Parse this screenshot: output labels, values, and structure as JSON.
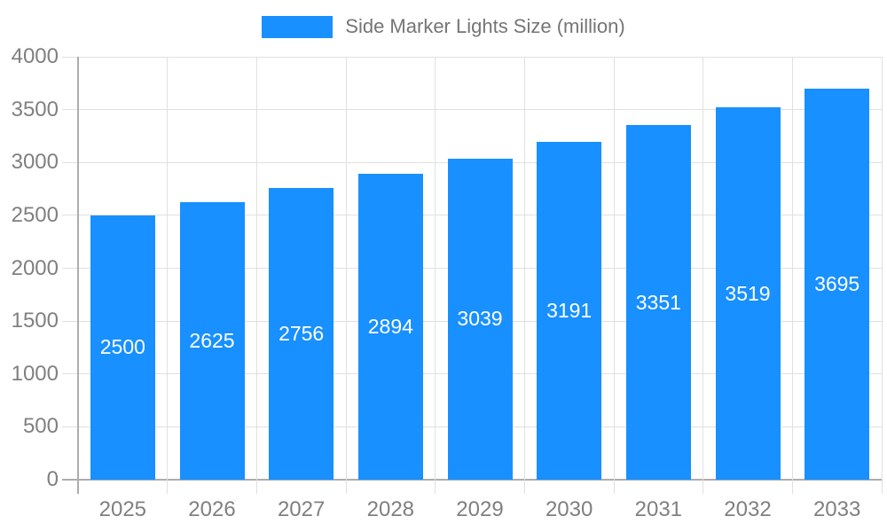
{
  "chart_data": {
    "type": "bar",
    "title": "Side Marker Lights Size (million)",
    "legend_position": "top",
    "categories": [
      "2025",
      "2026",
      "2027",
      "2028",
      "2029",
      "2030",
      "2031",
      "2032",
      "2033"
    ],
    "series": [
      {
        "name": "Side Marker Lights Size (million)",
        "values": [
          2500,
          2625,
          2756,
          2894,
          3039,
          3191,
          3351,
          3519,
          3695
        ]
      }
    ],
    "xlabel": "",
    "ylabel": "",
    "ylim": [
      0,
      4000
    ],
    "y_ticks": [
      0,
      500,
      1000,
      1500,
      2000,
      2500,
      3000,
      3500,
      4000
    ],
    "grid": true,
    "value_labels": "inside-center",
    "colors": {
      "bar": "#1890FF",
      "bar_label": "#FFFFFF",
      "axis_text": "#808080",
      "legend_text": "#757575",
      "grid_line": "#E0E0E0",
      "axis_line": "#ADADAD",
      "background": "#FFFFFF"
    }
  }
}
